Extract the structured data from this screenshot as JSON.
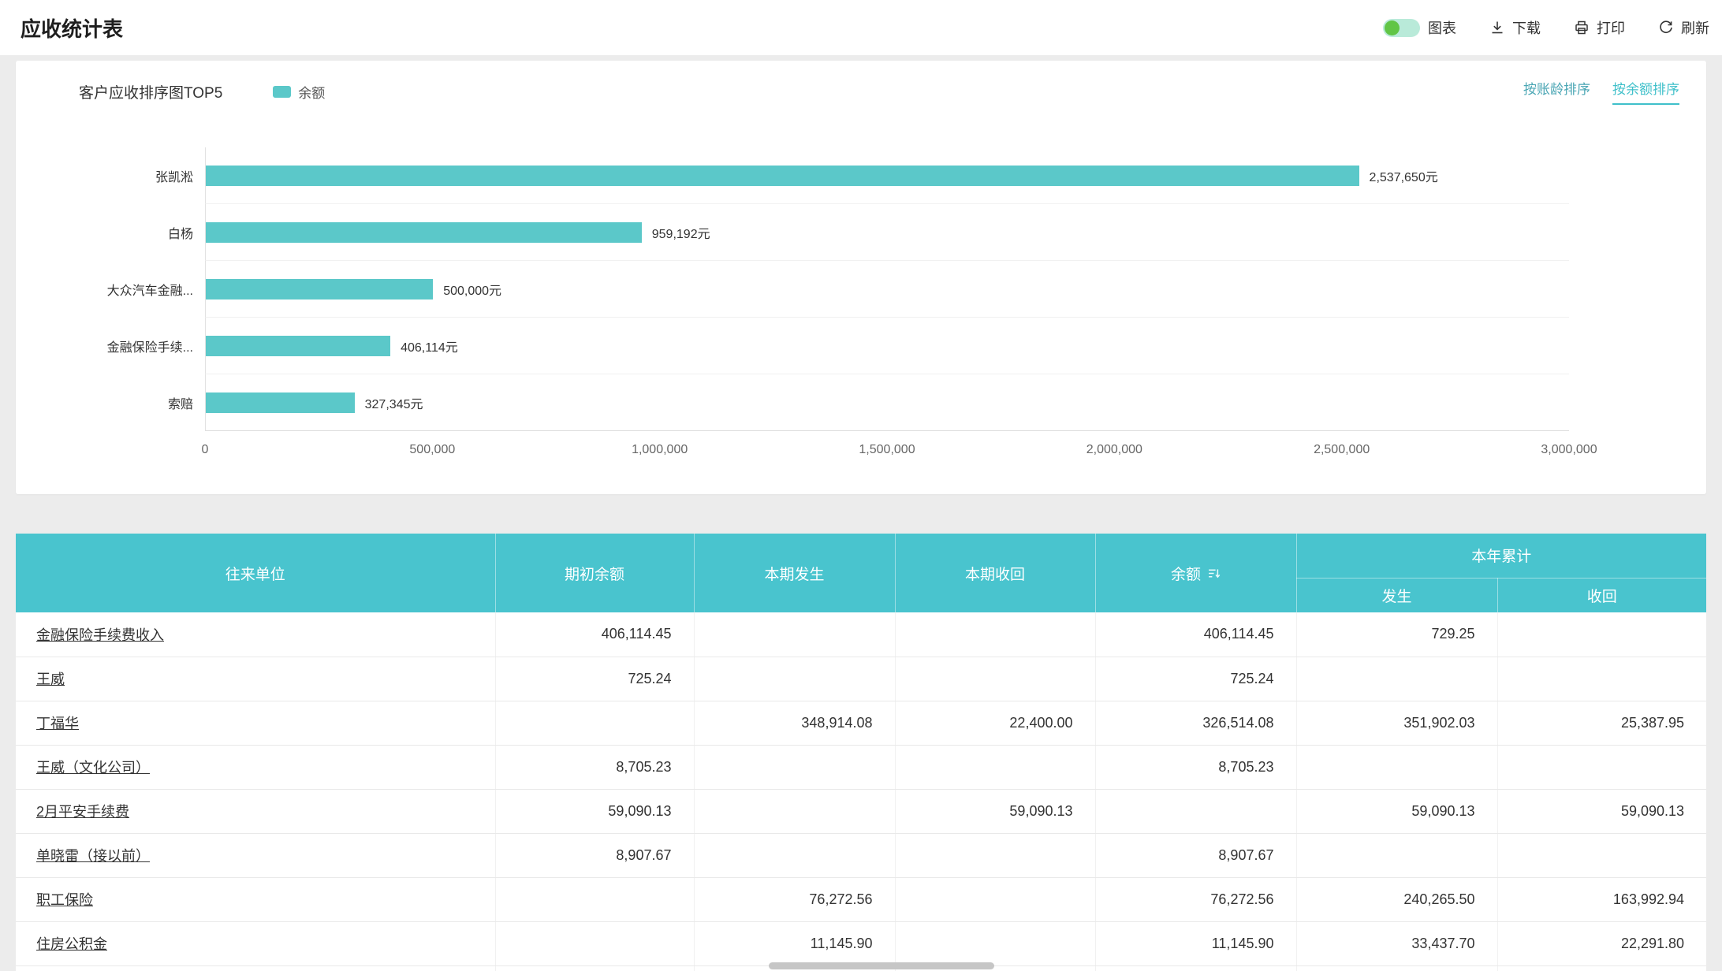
{
  "colors": {
    "accent": "#49C4CE",
    "bar": "#5BC8C9",
    "toggle_knob": "#61C546",
    "toggle_track": "#B9EAD9"
  },
  "header": {
    "title": "应收统计表",
    "view_toggle": {
      "label": "图表",
      "state": "on"
    },
    "actions": [
      {
        "icon": "download-icon",
        "label": "下载"
      },
      {
        "icon": "print-icon",
        "label": "打印"
      },
      {
        "icon": "refresh-icon",
        "label": "刷新"
      }
    ]
  },
  "chart": {
    "title": "客户应收排序图TOP5",
    "legend": "余额",
    "sort_options": [
      {
        "label": "按账龄排序",
        "active": false
      },
      {
        "label": "按余额排序",
        "active": true
      }
    ],
    "chart_data": {
      "type": "bar",
      "orientation": "horizontal",
      "title": "客户应收排序图TOP5",
      "legend_entries": [
        "余额"
      ],
      "categories": [
        "张凯淞",
        "白杨",
        "大众汽车金融...",
        "金融保险手续...",
        "索赔"
      ],
      "values": [
        2537650,
        959192,
        500000,
        406114,
        327345
      ],
      "value_labels": [
        "2,537,650元",
        "959,192元",
        "500,000元",
        "406,114元",
        "327,345元"
      ],
      "xlim": [
        0,
        3000000
      ],
      "x_ticks": [
        "0",
        "500,000",
        "1,000,000",
        "1,500,000",
        "2,000,000",
        "2,500,000",
        "3,000,000"
      ],
      "grid": "row-separators",
      "legend_position": "top-left"
    }
  },
  "table": {
    "headers": {
      "company": "往来单位",
      "opening": "期初余额",
      "current_incurred": "本期发生",
      "current_recovered": "本期收回",
      "balance": "余额",
      "ytd": "本年累计",
      "ytd_incurred": "发生",
      "ytd_recovered": "收回"
    },
    "rows": [
      {
        "company": "金融保险手续费收入",
        "opening": "406,114.45",
        "incurred": "",
        "recovered": "",
        "balance": "406,114.45",
        "ytd_incurred": "729.25",
        "ytd_recovered": ""
      },
      {
        "company": "王威",
        "opening": "725.24",
        "incurred": "",
        "recovered": "",
        "balance": "725.24",
        "ytd_incurred": "",
        "ytd_recovered": ""
      },
      {
        "company": "丁福华",
        "opening": "",
        "incurred": "348,914.08",
        "recovered": "22,400.00",
        "balance": "326,514.08",
        "ytd_incurred": "351,902.03",
        "ytd_recovered": "25,387.95"
      },
      {
        "company": "王威（文化公司）",
        "opening": "8,705.23",
        "incurred": "",
        "recovered": "",
        "balance": "8,705.23",
        "ytd_incurred": "",
        "ytd_recovered": ""
      },
      {
        "company": "2月平安手续费",
        "opening": "59,090.13",
        "incurred": "",
        "recovered": "59,090.13",
        "balance": "",
        "ytd_incurred": "59,090.13",
        "ytd_recovered": "59,090.13"
      },
      {
        "company": "单晓雷（接以前）",
        "opening": "8,907.67",
        "incurred": "",
        "recovered": "",
        "balance": "8,907.67",
        "ytd_incurred": "",
        "ytd_recovered": ""
      },
      {
        "company": "职工保险",
        "opening": "",
        "incurred": "76,272.56",
        "recovered": "",
        "balance": "76,272.56",
        "ytd_incurred": "240,265.50",
        "ytd_recovered": "163,992.94"
      },
      {
        "company": "住房公积金",
        "opening": "",
        "incurred": "11,145.90",
        "recovered": "",
        "balance": "11,145.90",
        "ytd_incurred": "33,437.70",
        "ytd_recovered": "22,291.80"
      }
    ]
  }
}
